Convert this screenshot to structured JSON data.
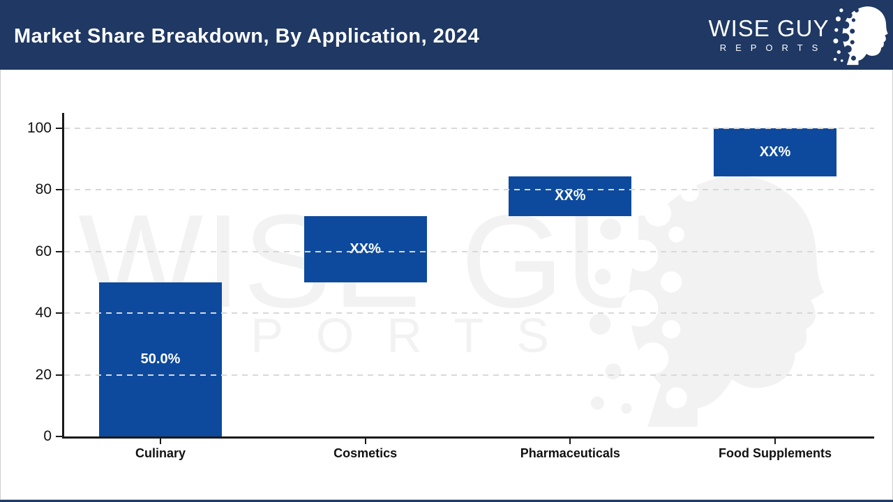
{
  "header": {
    "title": "Market Share Breakdown, By Application, 2024",
    "logo": {
      "line1": "WISE GUY",
      "line2": "REPORTS"
    }
  },
  "watermark": {
    "line1": "WISE GUY",
    "line2": "REPORTS"
  },
  "chart_data": {
    "type": "bar",
    "subtype": "waterfall",
    "title": "Market Share Breakdown, By Application, 2024",
    "categories": [
      "Culinary",
      "Cosmetics",
      "Pharmaceuticals",
      "Food Supplements"
    ],
    "segments": [
      {
        "category": "Culinary",
        "start": 0,
        "end": 50,
        "label": "50.0%"
      },
      {
        "category": "Cosmetics",
        "start": 50,
        "end": 71.5,
        "label": "XX%"
      },
      {
        "category": "Pharmaceuticals",
        "start": 71.5,
        "end": 84.5,
        "label": "XX%"
      },
      {
        "category": "Food Supplements",
        "start": 84.5,
        "end": 100,
        "label": "XX%"
      }
    ],
    "xlabel": "",
    "ylabel": "",
    "ylim": [
      0,
      105
    ],
    "yticks": [
      0,
      20,
      40,
      60,
      80,
      100
    ],
    "grid": "horizontal-dashed",
    "legend": "none",
    "bar_color": "#0d4a9e",
    "bar_label_color": "#ffffff",
    "grid_color": "#d8d8d8",
    "axis_color": "#1a1a1a"
  },
  "colors": {
    "header_bg": "#1f3864",
    "footer_bar": "#1f3864",
    "watermark": "#f2f2f2"
  }
}
